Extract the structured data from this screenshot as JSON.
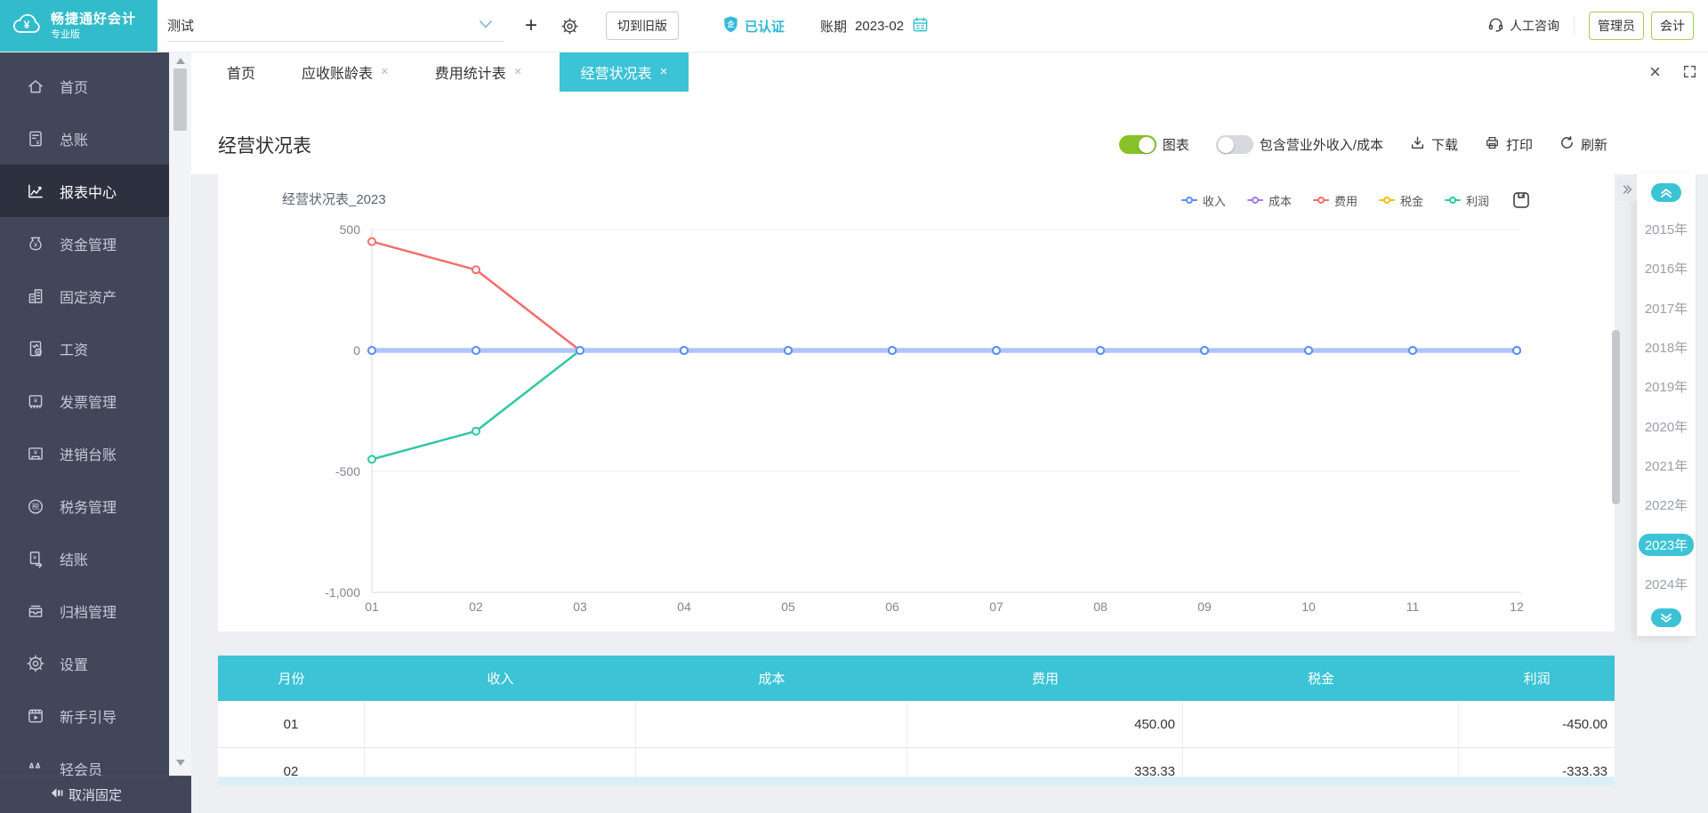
{
  "header": {
    "logo": {
      "title": "畅捷通好会计",
      "subtitle": "专业版"
    },
    "account": {
      "name": "测试"
    },
    "switch_old_button": "切到旧版",
    "certified_badge": "已认证",
    "period": {
      "label": "账期",
      "value": "2023-02"
    },
    "support_label": "人工咨询",
    "admin_button": "管理员",
    "role_button": "会计"
  },
  "sidebar": {
    "items": [
      {
        "label": "首页",
        "icon": "home-icon"
      },
      {
        "label": "总账",
        "icon": "general-ledger-icon"
      },
      {
        "label": "报表中心",
        "icon": "report-center-icon",
        "active": true
      },
      {
        "label": "资金管理",
        "icon": "fund-management-icon"
      },
      {
        "label": "固定资产",
        "icon": "fixed-assets-icon"
      },
      {
        "label": "工资",
        "icon": "salary-icon"
      },
      {
        "label": "发票管理",
        "icon": "invoice-management-icon"
      },
      {
        "label": "进销台账",
        "icon": "purchase-sale-ledger-icon"
      },
      {
        "label": "税务管理",
        "icon": "tax-management-icon"
      },
      {
        "label": "结账",
        "icon": "closing-icon"
      },
      {
        "label": "归档管理",
        "icon": "archive-management-icon"
      },
      {
        "label": "设置",
        "icon": "settings-icon"
      },
      {
        "label": "新手引导",
        "icon": "beginner-guide-icon"
      },
      {
        "label": "轻会员",
        "icon": "member-icon",
        "partial": true
      }
    ],
    "unpin_label": "取消固定"
  },
  "tabs": [
    {
      "label": "首页",
      "closable": false,
      "active": false
    },
    {
      "label": "应收账龄表",
      "closable": true,
      "active": false
    },
    {
      "label": "费用统计表",
      "closable": true,
      "active": false
    },
    {
      "label": "经营状况表",
      "closable": true,
      "active": true
    }
  ],
  "toolbar": {
    "page_title": "经营状况表",
    "chart_toggle": {
      "label": "图表",
      "on": true
    },
    "include_toggle": {
      "label": "包含营业外收入/成本",
      "on": false
    },
    "download_label": "下载",
    "print_label": "打印",
    "refresh_label": "刷新"
  },
  "year_panel": {
    "years": [
      "2015年",
      "2016年",
      "2017年",
      "2018年",
      "2019年",
      "2020年",
      "2021年",
      "2022年",
      "2023年",
      "2024年"
    ],
    "selected": "2023年"
  },
  "chart_data": {
    "type": "line",
    "title": "经营状况表_2023",
    "x": [
      "01",
      "02",
      "03",
      "04",
      "05",
      "06",
      "07",
      "08",
      "09",
      "10",
      "11",
      "12"
    ],
    "series": [
      {
        "name": "收入",
        "color": "#5B8FF9",
        "band_color": "#AEC5F9",
        "values": [
          0,
          0,
          0,
          0,
          0,
          0,
          0,
          0,
          0,
          0,
          0,
          0
        ]
      },
      {
        "name": "成本",
        "color": "#9B7DE9",
        "values": [
          0,
          0,
          0,
          0,
          0,
          0,
          0,
          0,
          0,
          0,
          0,
          0
        ]
      },
      {
        "name": "费用",
        "color": "#F56C6C",
        "values": [
          450,
          333.33,
          0,
          0,
          0,
          0,
          0,
          0,
          0,
          0,
          0,
          0
        ]
      },
      {
        "name": "税金",
        "color": "#F6BD16",
        "values": [
          0,
          0,
          0,
          0,
          0,
          0,
          0,
          0,
          0,
          0,
          0,
          0
        ]
      },
      {
        "name": "利润",
        "color": "#2EC7A2",
        "values": [
          -450,
          -333.33,
          0,
          0,
          0,
          0,
          0,
          0,
          0,
          0,
          0,
          0
        ]
      }
    ],
    "ylim": [
      -1000,
      500
    ],
    "yticks": [
      500,
      0,
      -500,
      -1000
    ],
    "ytick_labels": [
      "500",
      "0",
      "-500",
      "-1,000"
    ],
    "grid": true,
    "legend_position": "top-right"
  },
  "table": {
    "columns": [
      "月份",
      "收入",
      "成本",
      "费用",
      "税金",
      "利润"
    ],
    "rows": [
      [
        "01",
        "",
        "",
        "450.00",
        "",
        "-450.00"
      ],
      [
        "02",
        "",
        "",
        "333.33",
        "",
        "-333.33"
      ]
    ]
  },
  "colors": {
    "accent_teal": "#3CC3D5",
    "logo_teal": "#32BCCB",
    "sidebar_bg": "#414659",
    "sidebar_active_bg": "#2D313F",
    "toggle_on_green": "#87C226",
    "button_border_green": "#A6CE4E",
    "table_header_bg": "#3CC3D5"
  }
}
